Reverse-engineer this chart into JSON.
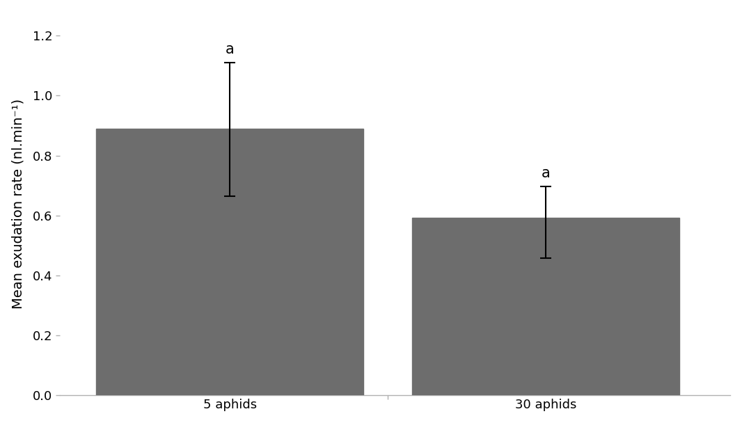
{
  "categories": [
    "5 aphids",
    "30 aphids"
  ],
  "values": [
    0.89,
    0.592
  ],
  "error_upper": [
    0.22,
    0.105
  ],
  "error_lower": [
    0.225,
    0.135
  ],
  "significance_labels": [
    "a",
    "a"
  ],
  "bar_color": "#6d6d6d",
  "bar_width": 0.55,
  "bar_positions": [
    0.35,
    1.0
  ],
  "ylabel": "Mean exudation rate (nl.min⁻¹)",
  "ylim": [
    0,
    1.28
  ],
  "yticks": [
    0,
    0.2,
    0.4,
    0.6,
    0.8,
    1.0,
    1.2
  ],
  "background_color": "#ffffff",
  "sig_label_fontsize": 15,
  "ylabel_fontsize": 14,
  "tick_fontsize": 13
}
